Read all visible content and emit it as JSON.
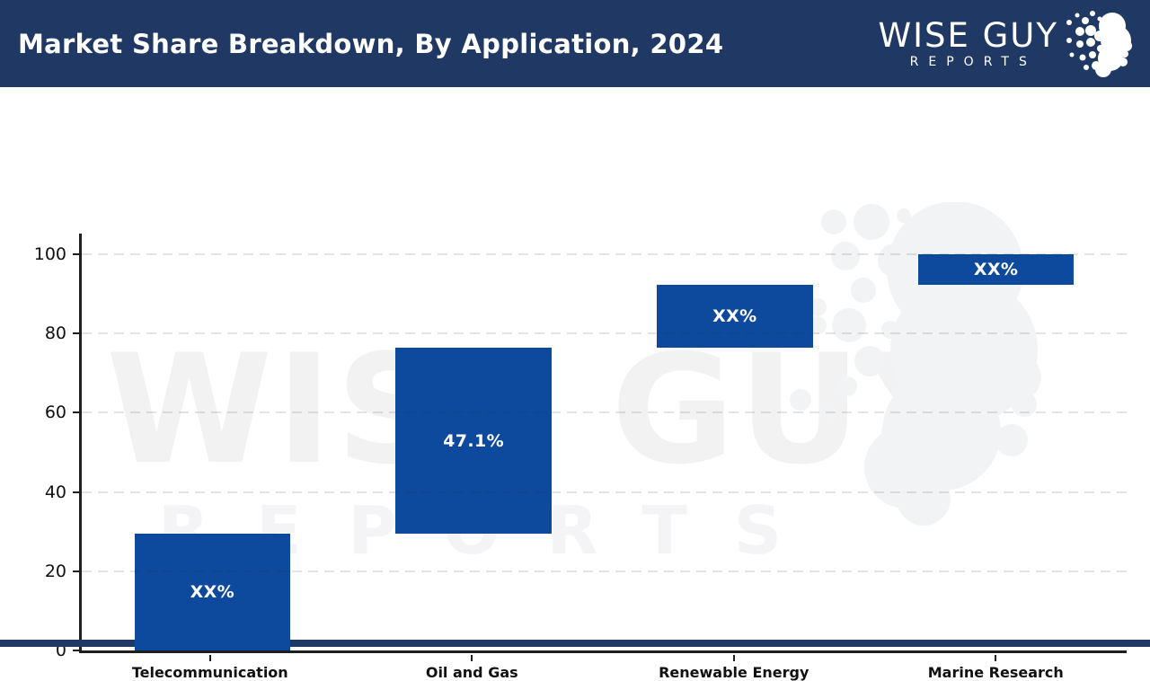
{
  "header": {
    "title": "Market Share Breakdown, By Application, 2024",
    "background_color": "#203864",
    "text_color": "#ffffff",
    "logo": {
      "wordmark": "WISE GUY",
      "subtext": "REPORTS"
    }
  },
  "watermark": {
    "wordmark": "WISE GUY",
    "subtext": "REPORTS"
  },
  "footer": {
    "background_color": "#203864"
  },
  "chart_data": {
    "type": "bar",
    "subtype": "floating-waterfall",
    "title": "Market Share Breakdown, By Application, 2024",
    "categories": [
      "Telecommunication",
      "Oil and Gas",
      "Renewable Energy",
      "Marine Research"
    ],
    "series": [
      {
        "name": "Market share (%)",
        "segments": [
          {
            "category": "Telecommunication",
            "start": 0,
            "end": 29.4,
            "value_label": "XX%"
          },
          {
            "category": "Oil and Gas",
            "start": 29.4,
            "end": 76.5,
            "value_label": "47.1%"
          },
          {
            "category": "Renewable Energy",
            "start": 76.5,
            "end": 92.2,
            "value_label": "XX%"
          },
          {
            "category": "Marine Research",
            "start": 92.2,
            "end": 100,
            "value_label": "XX%"
          }
        ]
      }
    ],
    "xlabel": "",
    "ylabel": "",
    "ylim": [
      0,
      100
    ],
    "yticks": [
      0,
      20,
      40,
      60,
      80,
      100
    ],
    "grid": {
      "horizontal": true,
      "style": "dashed",
      "color": "rgba(40,40,40,0.13)"
    },
    "legend": "none",
    "bar_color": "#0d4a9d",
    "bar_label_color": "#ffffff",
    "axis_color": "#1f1f1f",
    "tick_label_color": "#111111"
  }
}
